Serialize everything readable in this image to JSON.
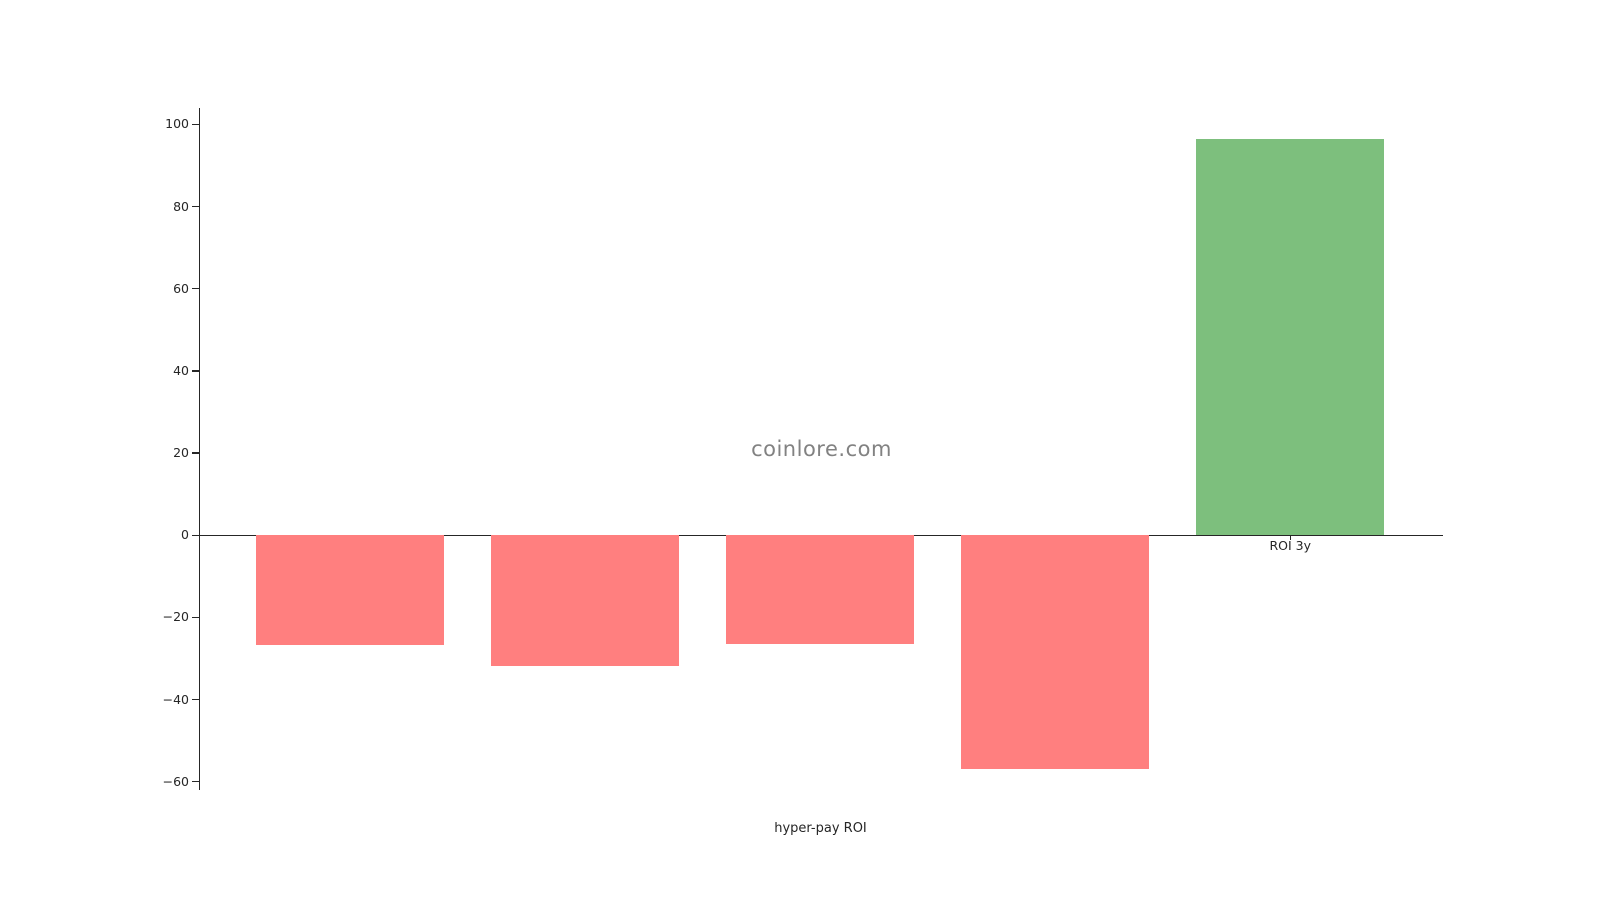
{
  "chart_data": {
    "type": "bar",
    "title": "",
    "xlabel": "hyper-pay ROI",
    "ylabel": "",
    "categories": [
      "",
      "",
      "",
      "",
      "ROI 3y"
    ],
    "values": [
      -26.6,
      -31.8,
      -26.5,
      -56.9,
      96.4
    ],
    "series": [
      {
        "name": "hyper-pay ROI",
        "values": [
          -26.6,
          -31.8,
          -26.5,
          -56.9,
          96.4
        ]
      }
    ],
    "negative_color": "#ff7f7f",
    "positive_color": "#7dbf7d",
    "axis_color": "#262626",
    "background_color": "#ffffff",
    "watermark": {
      "text": "coinlore.com",
      "color": "#828282"
    },
    "yticks": [
      {
        "value": 100,
        "label": "100"
      },
      {
        "value": 80,
        "label": "80"
      },
      {
        "value": 60,
        "label": "60"
      },
      {
        "value": 40,
        "label": "40"
      },
      {
        "value": 20,
        "label": "20"
      },
      {
        "value": 0,
        "label": "0"
      },
      {
        "value": -20,
        "label": "−20"
      },
      {
        "value": -40,
        "label": "−40"
      },
      {
        "value": -60,
        "label": "−60"
      }
    ],
    "ylim": [
      -62,
      104
    ],
    "xlim": [
      -0.64,
      4.65
    ],
    "bar_width": 0.8,
    "grid": false,
    "legend": "none"
  }
}
